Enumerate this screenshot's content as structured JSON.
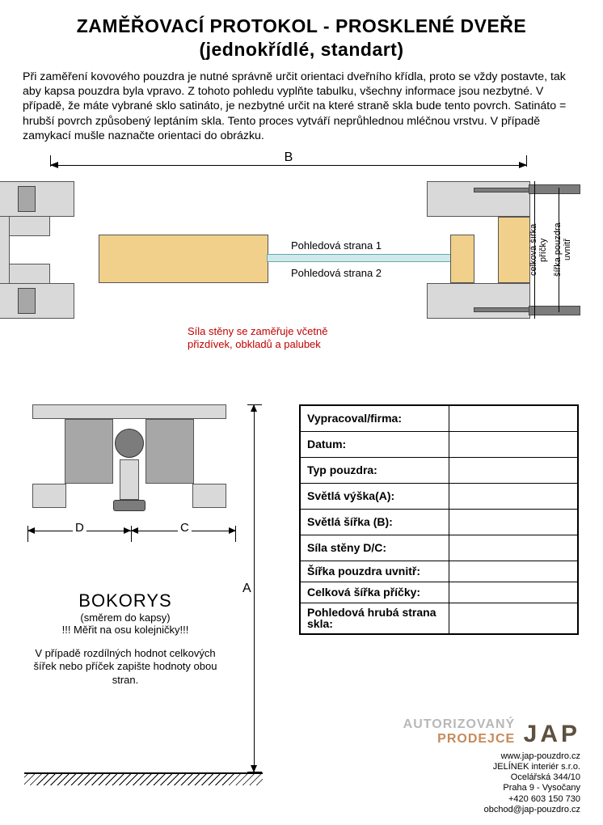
{
  "title_line1": "ZAMĚŘOVACÍ PROTOKOL - PROSKLENÉ DVEŘE",
  "title_line2": "(jednokřídlé, standart)",
  "intro": "Při zaměření kovového pouzdra je nutné správně určit orientaci dveřního křídla, proto se vždy postavte, tak aby kapsa pouzdra byla vpravo. Z tohoto pohledu vyplňte tabulku, všechny informace jsou nezbytné. V případě, že máte vybrané sklo satináto, je nezbytné určit na které straně skla bude tento povrch. Satináto = hrubší povrch způsobený leptáním skla. Tento proces vytváří neprůhlednou mléčnou vrstvu. V případě zamykací mušle naznačte orientaci do obrázku.",
  "dims": {
    "B": "B",
    "D": "D",
    "C": "C",
    "A": "A"
  },
  "labels": {
    "pohled1": "Pohledová strana 1",
    "pohled2": "Pohledová strana 2",
    "warn1": "Síla stěny se zaměřuje včetně",
    "warn2": "přizdívek, obkladů a palubek",
    "celkova": "celková šířka příčky",
    "sirka_uvnitr": "šířka pouzdra uvnitř"
  },
  "bokorys": {
    "title": "BOKORYS",
    "sub": "(směrem do kapsy)",
    "warn": "!!! Měřit na osu kolejničky!!!",
    "note": "V případě rozdílných hodnot celkových šířek nebo příček zapište hodnoty obou stran."
  },
  "form": {
    "rows": [
      {
        "label": "Vypracoval/firma:",
        "value": ""
      },
      {
        "label": "Datum:",
        "value": ""
      },
      {
        "label": "Typ pouzdra:",
        "value": ""
      },
      {
        "label": "Světlá výška(A):",
        "value": ""
      },
      {
        "label": "Světlá šířka (B):",
        "value": ""
      },
      {
        "label": "Síla stěny D/C:",
        "value": ""
      },
      {
        "label": "Šířka pouzdra uvnitř:",
        "value": ""
      },
      {
        "label": "Celková šířka příčky:",
        "value": ""
      },
      {
        "label": "Pohledová hrubá strana skla:",
        "value": ""
      }
    ]
  },
  "footer": {
    "autoriz": "AUTORIZOVANÝ",
    "prodejce": "PRODEJCE",
    "brand": "JAP",
    "contact": [
      "www.jap-pouzdro.cz",
      "JELÍNEK interiér s.r.o.",
      "Ocelářská 344/10",
      "Praha 9 - Vysočany",
      "+420 603 150 730",
      "obchod@jap-pouzdro.cz"
    ]
  },
  "colors": {
    "wood": "#f0d08a",
    "gray": "#a7a7a7",
    "lgray": "#d9d9d9",
    "warn": "#c00000",
    "glass": "#cfe9eb"
  }
}
